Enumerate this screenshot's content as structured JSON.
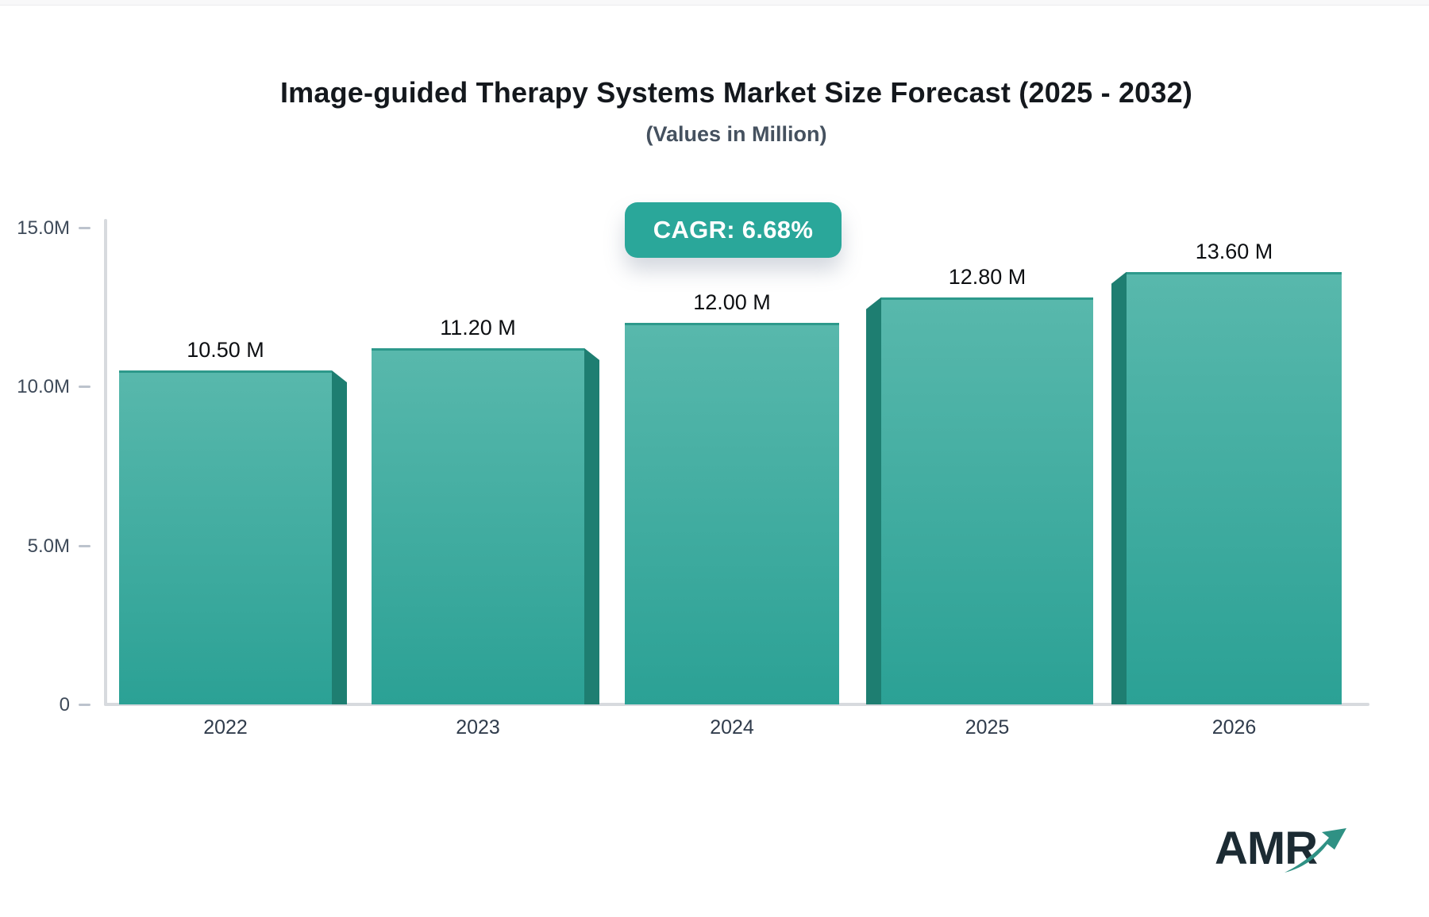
{
  "page": {
    "title": "Image-guided Therapy Systems Market Size Forecast (2025 - 2032)",
    "subtitle": "(Values in Million)",
    "cagr_label": "CAGR: 6.68%"
  },
  "chart_data": {
    "type": "bar",
    "title": "Image-guided Therapy Systems Market Size Forecast (2025 - 2032)",
    "subtitle": "(Values in Million)",
    "categories": [
      "2022",
      "2023",
      "2024",
      "2025",
      "2026"
    ],
    "values": [
      10.5,
      11.2,
      12.0,
      12.8,
      13.6
    ],
    "value_labels": [
      "10.50 M",
      "11.20 M",
      "12.00 M",
      "12.80 M",
      "13.60 M"
    ],
    "unit": "Million",
    "xlabel": "",
    "ylabel": "",
    "ylim": [
      0,
      15
    ],
    "yticks": [
      {
        "value": 15,
        "label": "15.0M"
      },
      {
        "value": 10,
        "label": "10.0M"
      },
      {
        "value": 5,
        "label": "5.0M"
      },
      {
        "value": 0,
        "label": "0"
      }
    ],
    "grid": false,
    "legend": "none",
    "annotations": [
      {
        "text": "CAGR: 6.68%",
        "position": "top-center"
      }
    ],
    "bar_3d_sides": [
      "right",
      "right",
      "none",
      "left",
      "left"
    ],
    "colors": {
      "bar_face_top": "#58b8ac",
      "bar_face_bottom": "#2ba195",
      "bar_side": "#1e7e71",
      "badge_accent": "#2aa79a",
      "axis_gray": "#d7dade",
      "logo_arrow": "#2f9184"
    }
  },
  "branding": {
    "logo_text": "AMR"
  }
}
